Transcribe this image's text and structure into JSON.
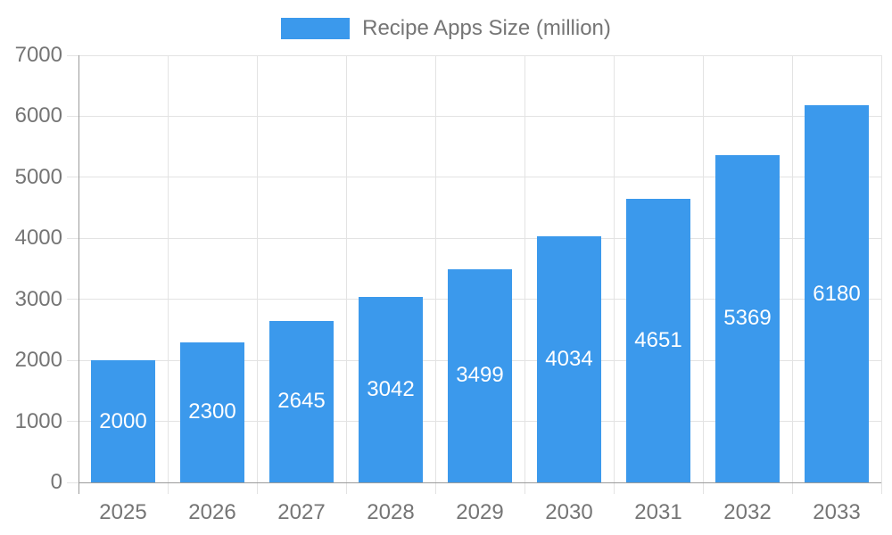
{
  "chart_data": {
    "type": "bar",
    "title": "Recipe Apps Size (million)",
    "categories": [
      "2025",
      "2026",
      "2027",
      "2028",
      "2029",
      "2030",
      "2031",
      "2032",
      "2033"
    ],
    "values": [
      2000,
      2300,
      2645,
      3042,
      3499,
      4034,
      4651,
      5369,
      6180
    ],
    "series": [
      {
        "name": "Recipe Apps Size (million)",
        "values": [
          2000,
          2300,
          2645,
          3042,
          3499,
          4034,
          4651,
          5369,
          6180
        ]
      }
    ],
    "xlabel": "",
    "ylabel": "",
    "ylim": [
      0,
      7000
    ],
    "y_ticks": [
      0,
      1000,
      2000,
      3000,
      4000,
      5000,
      6000,
      7000
    ],
    "grid": "on",
    "legend_position": "top-center",
    "bar_labels_shown": true,
    "colors": {
      "bar": "#3b99ec",
      "bar_label_text": "#ffffff",
      "axis_text": "#757575",
      "legend_text": "#757575",
      "gridline": "#e3e3e3",
      "axis_line": "#9b9b9b"
    }
  }
}
